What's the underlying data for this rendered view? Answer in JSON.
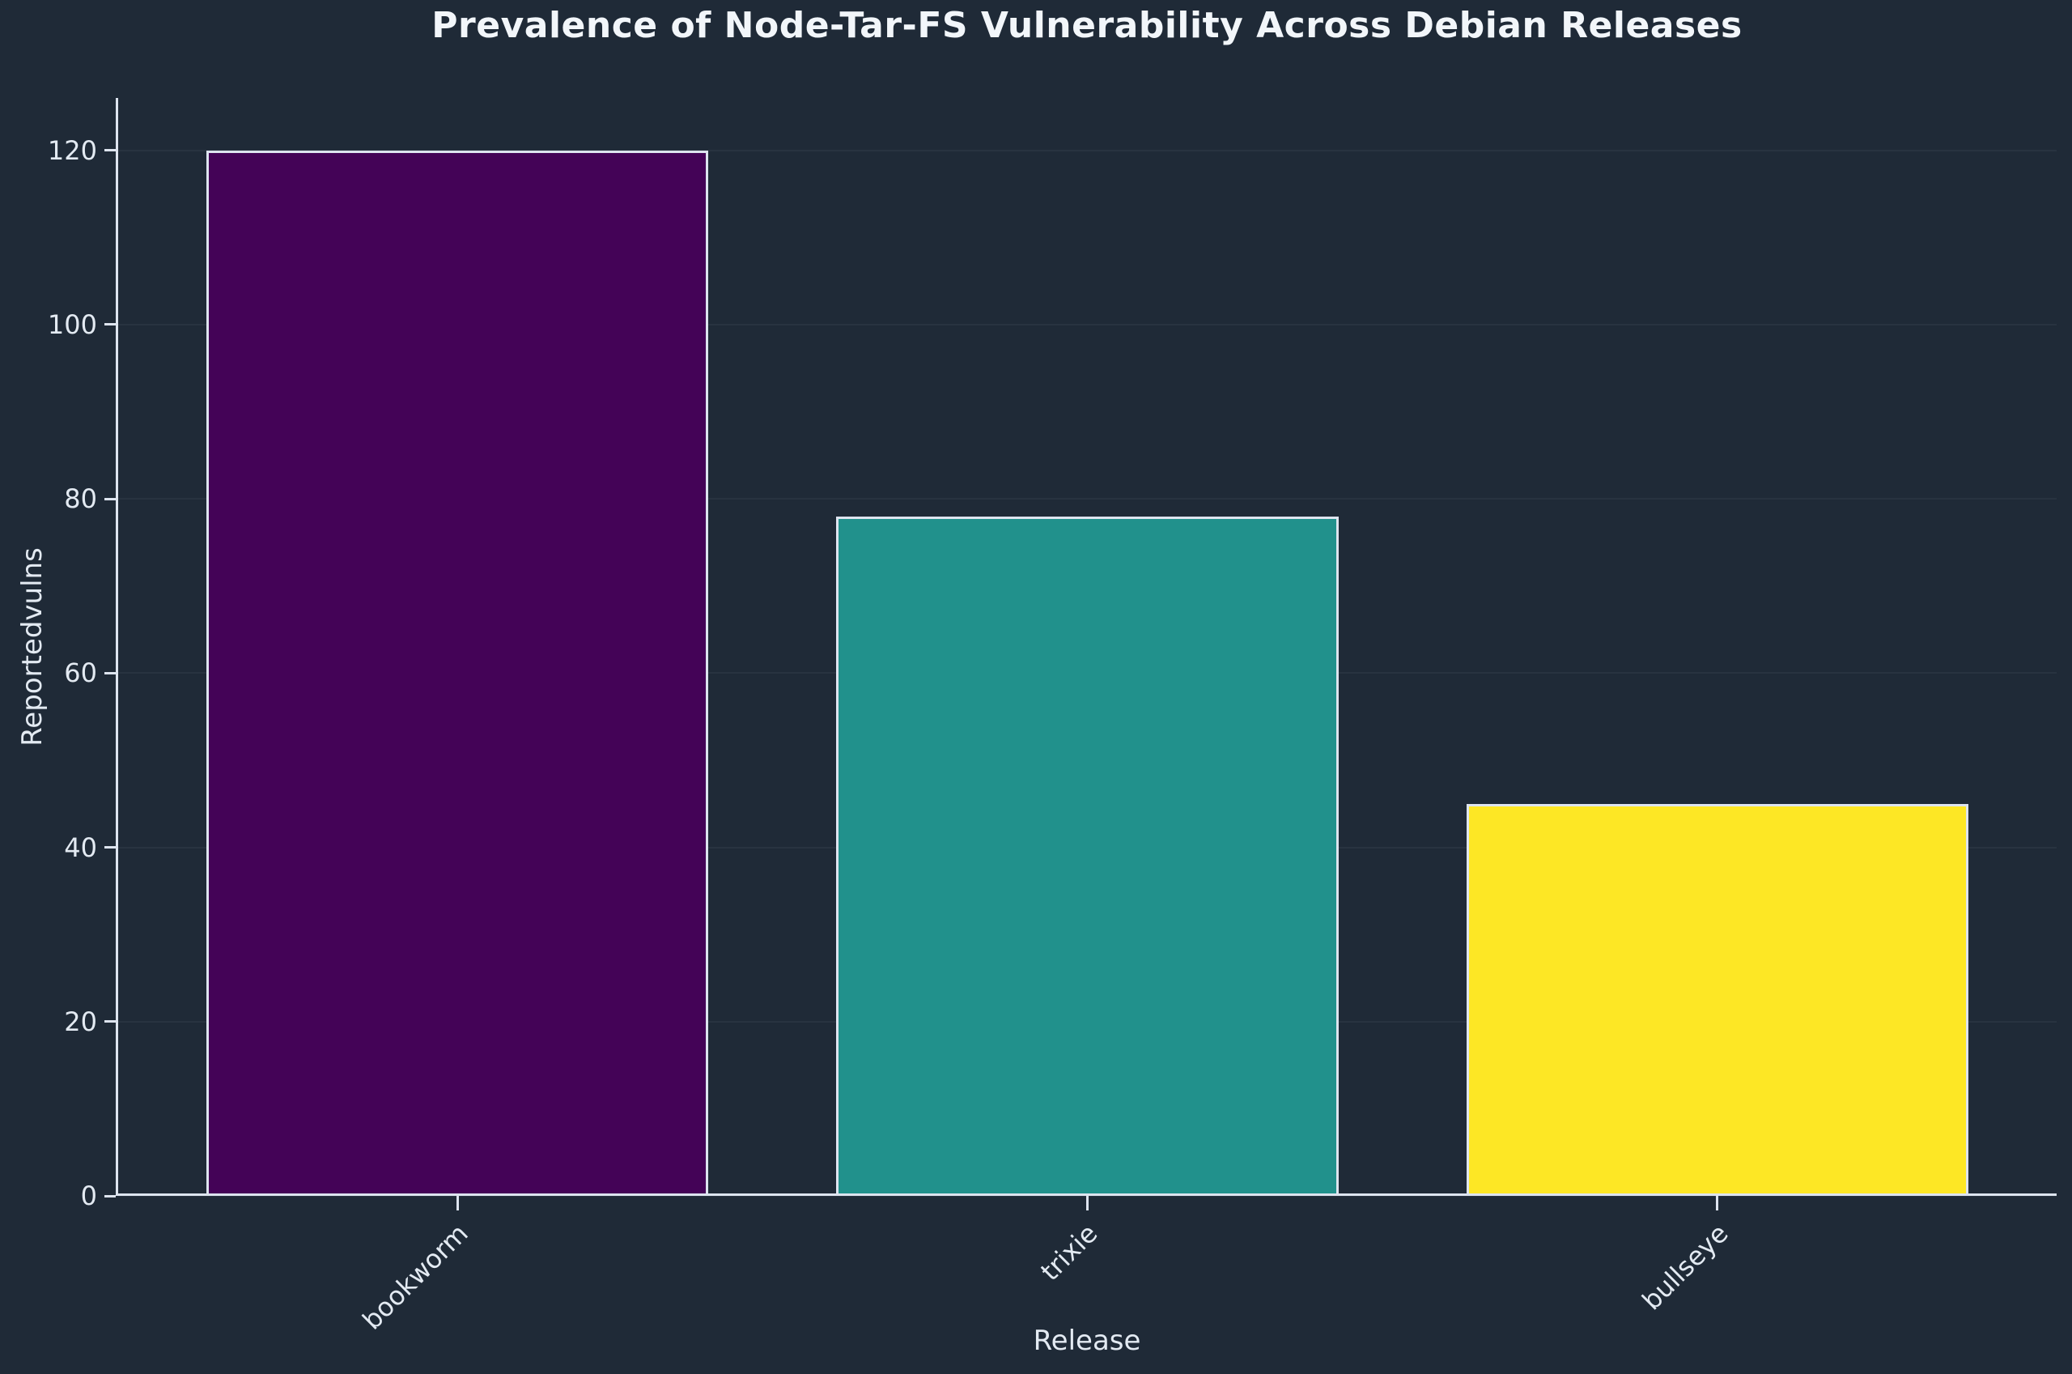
{
  "chart_data": {
    "type": "bar",
    "title": "Prevalence of Node-Tar-FS Vulnerability Across Debian Releases",
    "xlabel": "Release",
    "ylabel": "Reportedvulns",
    "categories": [
      "bookworm",
      "trixie",
      "bullseye"
    ],
    "values": [
      120,
      78,
      45
    ],
    "yticks": [
      0,
      20,
      40,
      60,
      80,
      100,
      120
    ],
    "ylim": [
      0,
      126
    ],
    "grid": "faint-horizontal",
    "legend_position": "none",
    "colors": {
      "background": "#1f2a37",
      "bars": [
        "#440357",
        "#21918c",
        "#fde725"
      ],
      "bar_edge": "#dde4ef",
      "axis": "#dde4ef",
      "tick_text": "#e3eaf2",
      "title_text": "#f2f6fa"
    }
  }
}
